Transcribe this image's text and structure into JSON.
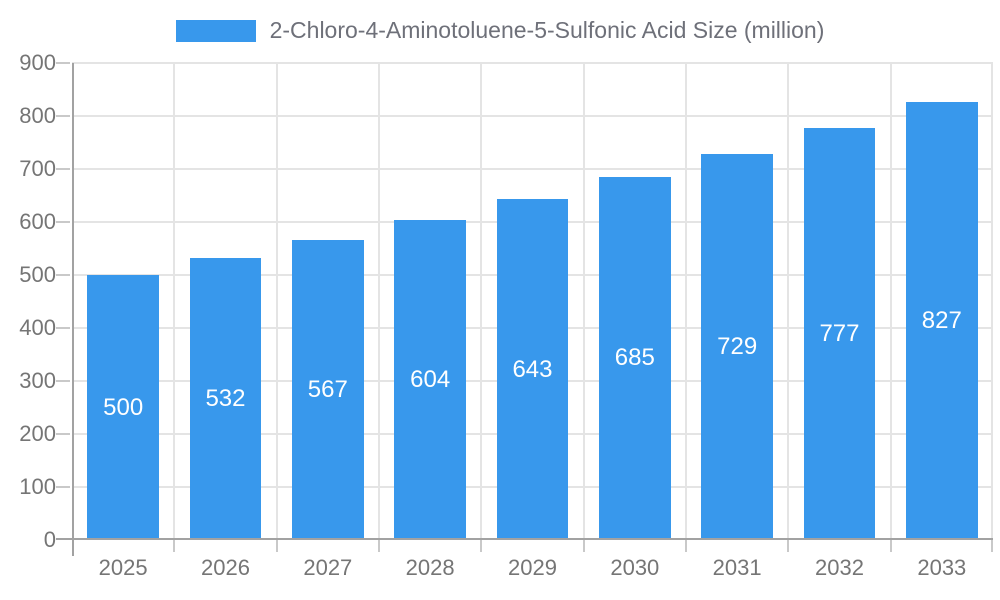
{
  "chart_data": {
    "type": "bar",
    "title": "2-Chloro-4-Aminotoluene-5-Sulfonic Acid Size (million)",
    "categories": [
      "2025",
      "2026",
      "2027",
      "2028",
      "2029",
      "2030",
      "2031",
      "2032",
      "2033"
    ],
    "values": [
      500,
      532,
      567,
      604,
      643,
      685,
      729,
      777,
      827
    ],
    "xlabel": "",
    "ylabel": "",
    "ylim": [
      0,
      900
    ],
    "yticks": [
      0,
      100,
      200,
      300,
      400,
      500,
      600,
      700,
      800,
      900
    ],
    "grid": true,
    "legend_position": "top",
    "value_label_position": "inside-center",
    "colors": {
      "bar": "#3898EC",
      "bar_label": "#FFFFFF",
      "axis_line": "#A2A2A2",
      "grid_line": "#E4E4E4",
      "tick_line": "#C9C9C9",
      "tick_label": "#757575",
      "legend_text": "#6E7079"
    }
  }
}
